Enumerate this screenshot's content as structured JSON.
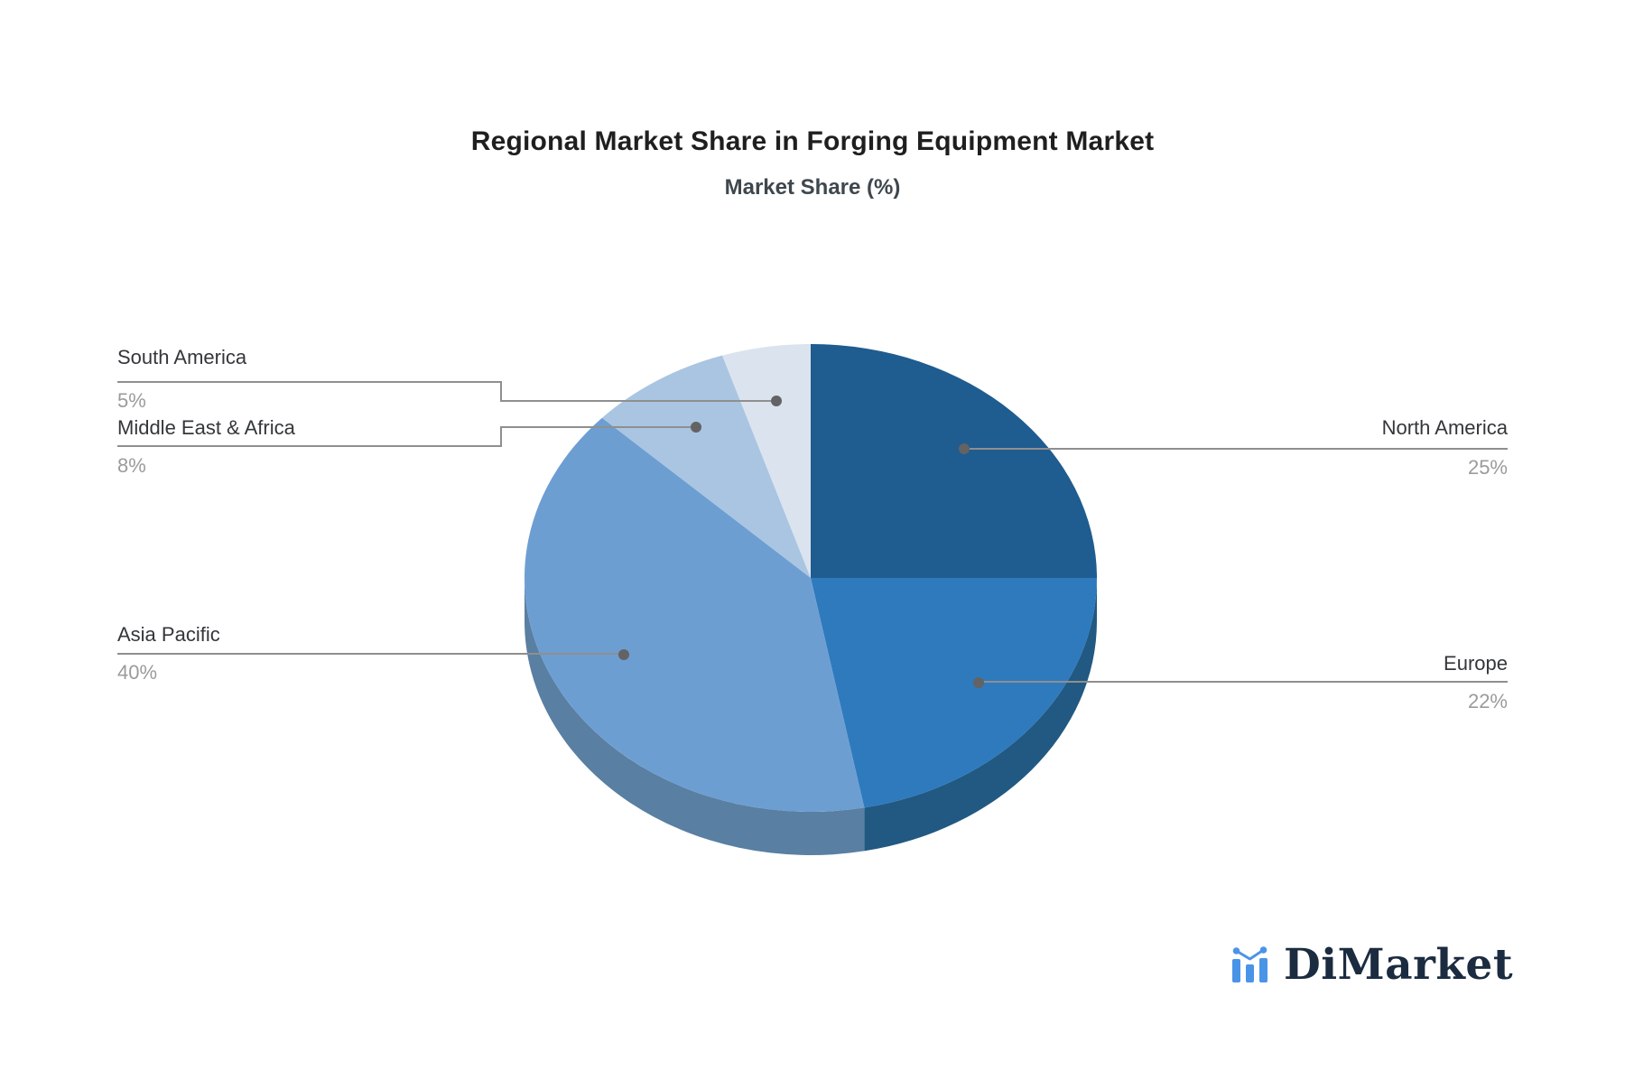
{
  "chart_data": {
    "type": "pie",
    "title": "Regional Market Share in Forging Equipment Market",
    "subtitle": "Market Share (%)",
    "unit": "%",
    "style_3d": true,
    "legend": "none",
    "labels_position": "callouts-left-right",
    "order": "clockwise-from-12-oclock",
    "series": [
      {
        "id": "north-america",
        "name": "North America",
        "value": 25,
        "pct": "25%",
        "color": "#1f5c90"
      },
      {
        "id": "europe",
        "name": "Europe",
        "value": 22,
        "pct": "22%",
        "color": "#2e7abd",
        "side_color": "#215982"
      },
      {
        "id": "asia-pacific",
        "name": "Asia Pacific",
        "value": 40,
        "pct": "40%",
        "color": "#6d9ed2",
        "side_color": "#597fa2"
      },
      {
        "id": "middle-east-africa",
        "name": "Middle East & Africa",
        "value": 8,
        "pct": "8%",
        "color": "#a9c5e1"
      },
      {
        "id": "south-america",
        "name": "South America",
        "value": 5,
        "pct": "5%",
        "color": "#dbe3ee"
      }
    ],
    "callout_line_color": "#8f8f8f",
    "callout_dot_color": "#636363",
    "text_color": "#33373a",
    "pct_color": "#9b9b9b"
  },
  "logo": {
    "text": "DiMarket",
    "icon": "bar-chart-trend-icon",
    "text_color": "#1b2b40",
    "accent_color": "#4a94e8"
  }
}
